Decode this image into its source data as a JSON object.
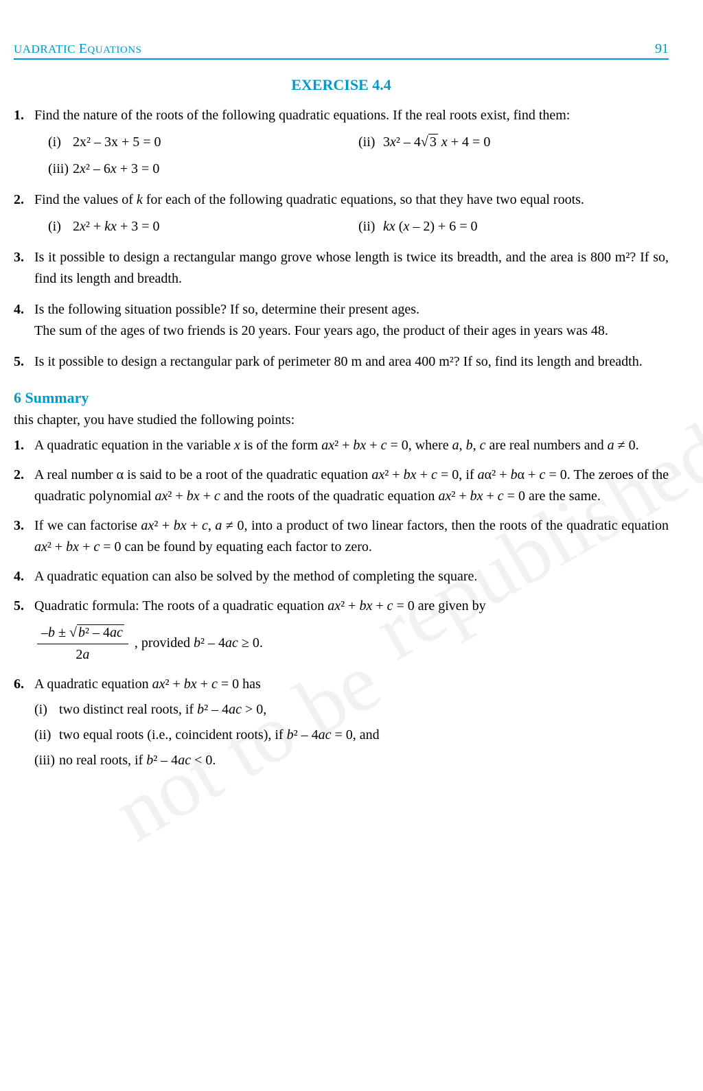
{
  "header": {
    "chapter_title_small": "UADRATIC",
    "chapter_title_caps": "E",
    "chapter_title_rest": "QUATIONS",
    "page_number": "91"
  },
  "exercise": {
    "title": "EXERCISE 4.4",
    "items": [
      {
        "num": "1.",
        "text": "Find the nature of the roots of the following quadratic equations. If the real roots exist, find them:",
        "subs_row1": [
          {
            "label": "(i)",
            "eq": "2x² – 3x + 5 = 0"
          },
          {
            "label": "(ii)",
            "eq": "3x² – 4√3 x + 4 = 0"
          }
        ],
        "subs_row2": [
          {
            "label": "(iii)",
            "eq": "2x² – 6x + 3 = 0"
          }
        ]
      },
      {
        "num": "2.",
        "text": "Find the values of k for each of the following quadratic equations, so that they have two equal roots.",
        "subs_row1": [
          {
            "label": "(i)",
            "eq": "2x² + kx + 3 = 0"
          },
          {
            "label": "(ii)",
            "eq": "kx (x – 2) + 6 = 0"
          }
        ]
      },
      {
        "num": "3.",
        "text": "Is it possible to design a rectangular mango grove whose length is twice its breadth, and the area is 800 m²? If so, find its length and breadth."
      },
      {
        "num": "4.",
        "text_parts": [
          "Is the following situation possible? If so, determine their present ages.",
          "The sum of the ages of two friends is 20 years. Four years ago, the product of their ages in years was 48."
        ]
      },
      {
        "num": "5.",
        "text": "Is it possible to design a rectangular park of perimeter 80 m and area 400 m²? If so, find its length and breadth."
      }
    ]
  },
  "summary": {
    "section_num": "6",
    "section_title": "Summary",
    "intro": "this chapter, you have studied the following points:",
    "items": [
      {
        "num": "1.",
        "html": "A quadratic equation in the variable <span class='italic'>x</span> is of the form <span class='italic'>ax</span>² + <span class='italic'>bx</span> + <span class='italic'>c</span> = 0, where <span class='italic'>a</span>, <span class='italic'>b</span>, <span class='italic'>c</span> are real numbers and <span class='italic'>a</span> ≠ 0."
      },
      {
        "num": "2.",
        "html": "A real number α is said to be a root of the quadratic equation <span class='italic'>ax</span>² + <span class='italic'>bx</span> + <span class='italic'>c</span> = 0, if <span class='italic'>a</span>α² + <span class='italic'>b</span>α + <span class='italic'>c</span> = 0. The zeroes of the quadratic polynomial <span class='italic'>ax</span>² + <span class='italic'>bx</span> + <span class='italic'>c</span> and the roots of the quadratic equation <span class='italic'>ax</span>² + <span class='italic'>bx</span> + <span class='italic'>c</span> = 0 are the same."
      },
      {
        "num": "3.",
        "html": "If we can factorise <span class='italic'>ax</span>² + <span class='italic'>bx</span> + <span class='italic'>c</span>, <span class='italic'>a</span> ≠ 0, into a product of two linear factors, then the roots of the quadratic equation <span class='italic'>ax</span>² + <span class='italic'>bx</span> + <span class='italic'>c</span> = 0 can be found by equating each factor to zero."
      },
      {
        "num": "4.",
        "html": "A quadratic equation can also be solved by the method of completing the square."
      },
      {
        "num": "5.",
        "html_pre": "Quadratic formula: The roots of a quadratic equation <span class='italic'>ax</span>² + <span class='italic'>bx</span> + <span class='italic'>c</span> = 0 are given by",
        "formula_top": "–b ± √(b² – 4ac)",
        "formula_bot": "2a",
        "html_post": ", provided <span class='italic'>b</span>² – 4<span class='italic'>ac</span> ≥ 0."
      },
      {
        "num": "6.",
        "html": "A quadratic equation <span class='italic'>ax</span>² + <span class='italic'>bx</span> + <span class='italic'>c</span> = 0 has",
        "roman": [
          {
            "rn": "(i)",
            "html": "two distinct real roots, if <span class='italic'>b</span>² – 4<span class='italic'>ac</span> > 0,"
          },
          {
            "rn": "(ii)",
            "html": "two equal roots (i.e., coincident roots), if <span class='italic'>b</span>² – 4<span class='italic'>ac</span> = 0, and"
          },
          {
            "rn": "(iii)",
            "html": "no real roots, if <span class='italic'>b</span>² – 4<span class='italic'>ac</span> < 0."
          }
        ]
      }
    ]
  },
  "colors": {
    "accent": "#0099cc",
    "text": "#000000",
    "background": "#ffffff"
  }
}
